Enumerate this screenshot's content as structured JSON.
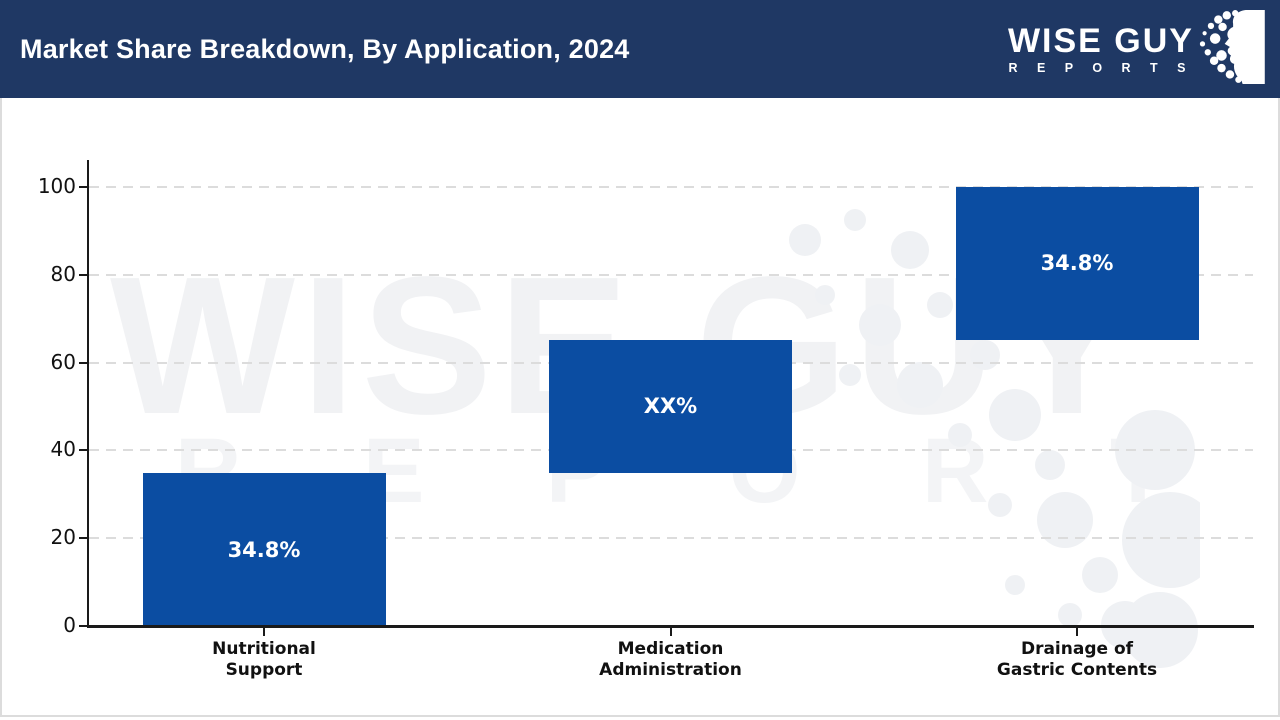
{
  "header": {
    "title": "Market Share Breakdown, By Application, 2024",
    "bg_color": "#1f3864",
    "logo": {
      "line1": "WISE GUY",
      "line2": "R E P O R T S"
    }
  },
  "watermark": {
    "line1": "WISE GUY",
    "line2": "REPORTS"
  },
  "chart_data": {
    "type": "bar",
    "variant": "floating-segment-bars (stacked market-share breakdown)",
    "title": "Market Share Breakdown, By Application, 2024",
    "categories": [
      "Nutritional Support",
      "Medication Administration",
      "Drainage of Gastric Contents"
    ],
    "category_label_lines": [
      [
        "Nutritional",
        "Support"
      ],
      [
        "Medication",
        "Administration"
      ],
      [
        "Drainage of",
        "Gastric Contents"
      ]
    ],
    "bars": [
      {
        "category": "Nutritional Support",
        "start": 0,
        "end": 34.8,
        "label": "34.8%"
      },
      {
        "category": "Medication Administration",
        "start": 34.8,
        "end": 65.2,
        "label": "XX%"
      },
      {
        "category": "Drainage of Gastric Contents",
        "start": 65.2,
        "end": 100,
        "label": "34.8%"
      }
    ],
    "xlabel": "",
    "ylabel": "",
    "yticks": [
      0,
      20,
      40,
      60,
      80,
      100
    ],
    "ylim": [
      0,
      105
    ],
    "grid": "horizontal dashed gridlines at each y tick",
    "legend_position": "none",
    "colors": {
      "bar": "#0b4da2",
      "bar_label": "#ffffff",
      "axis": "#1a1a1a",
      "gridline": "#dcdcdc",
      "tick_label": "#111111"
    }
  }
}
